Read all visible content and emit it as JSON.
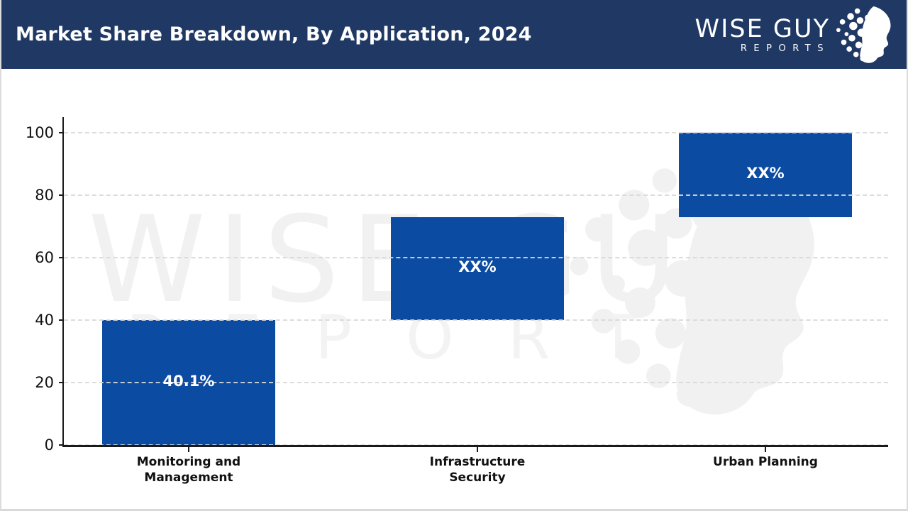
{
  "header": {
    "bg_color": "#1f3864",
    "title": "Market Share Breakdown, By Application, 2024",
    "logo": {
      "line1": "WISE GUY",
      "line2": "REPORTS"
    }
  },
  "watermark": {
    "line1": "WISE GUY",
    "line2": "REPORTS"
  },
  "chart_data": {
    "type": "bar",
    "subtype": "floating-breakdown",
    "title": "Market Share Breakdown, By Application, 2024",
    "categories": [
      [
        "Monitoring and",
        "Management"
      ],
      [
        "Infrastructure",
        "Security"
      ],
      [
        "Urban Planning"
      ]
    ],
    "segments": [
      {
        "category": "Monitoring and Management",
        "start": 0,
        "end": 40.1,
        "label": "40.1%"
      },
      {
        "category": "Infrastructure Security",
        "start": 40.1,
        "end": 73,
        "label": "XX%"
      },
      {
        "category": "Urban Planning",
        "start": 73,
        "end": 100,
        "label": "XX%"
      }
    ],
    "yticks": [
      0,
      20,
      40,
      60,
      80,
      100
    ],
    "ylim": [
      0,
      105
    ],
    "grid": {
      "axis": "y",
      "style": "dashed",
      "color": "#d9d9d9"
    },
    "legend": "none",
    "bar_color": "#0b4ba1",
    "bar_label_color": "#ffffff",
    "axis_color": "#1a1a1a",
    "tick_label_color": "#111111"
  }
}
